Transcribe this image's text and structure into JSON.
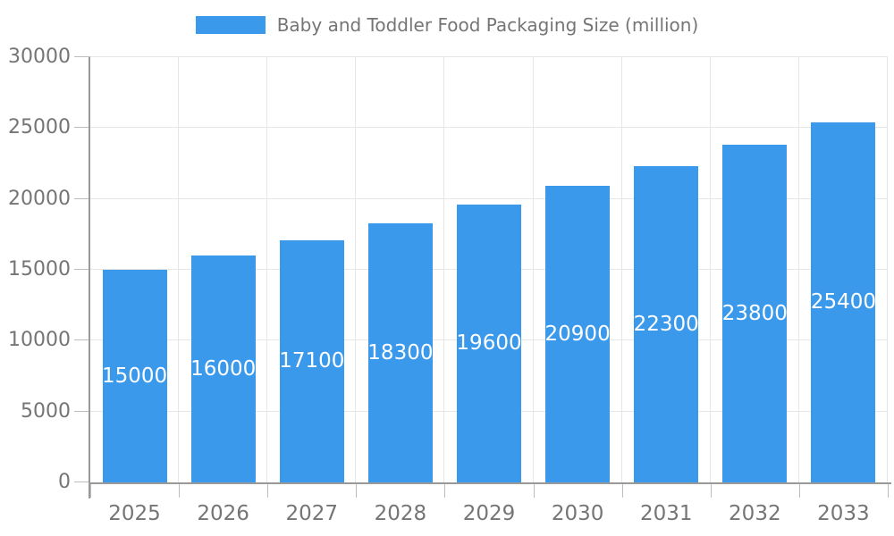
{
  "chart_data": {
    "type": "bar",
    "title": "Baby and Toddler Food Packaging Size (million)",
    "series_name": "Baby and Toddler Food Packaging Size (million)",
    "categories": [
      "2025",
      "2026",
      "2027",
      "2028",
      "2029",
      "2030",
      "2031",
      "2032",
      "2033"
    ],
    "values": [
      15000,
      16000,
      17100,
      18300,
      19600,
      20900,
      22300,
      23800,
      25400
    ],
    "bar_labels": [
      "15000",
      "16000",
      "17100",
      "18300",
      "19600",
      "20900",
      "22300",
      "23800",
      "25400"
    ],
    "xlabel": "",
    "ylabel": "",
    "ylim": [
      0,
      30000
    ],
    "yticks": [
      0,
      5000,
      10000,
      15000,
      20000,
      25000,
      30000
    ],
    "ytick_labels": [
      "0",
      "5000",
      "10000",
      "15000",
      "20000",
      "25000",
      "30000"
    ],
    "grid": true,
    "legend_position": "top",
    "colors": {
      "bar": "#3B99EC",
      "bar_label_text": "#FFFFFF",
      "axis_text": "#757575",
      "grid_line": "#E6E6E6",
      "axis_line": "#999999",
      "tick_mark": "#BDBDBD",
      "background": "#FFFFFF"
    }
  }
}
